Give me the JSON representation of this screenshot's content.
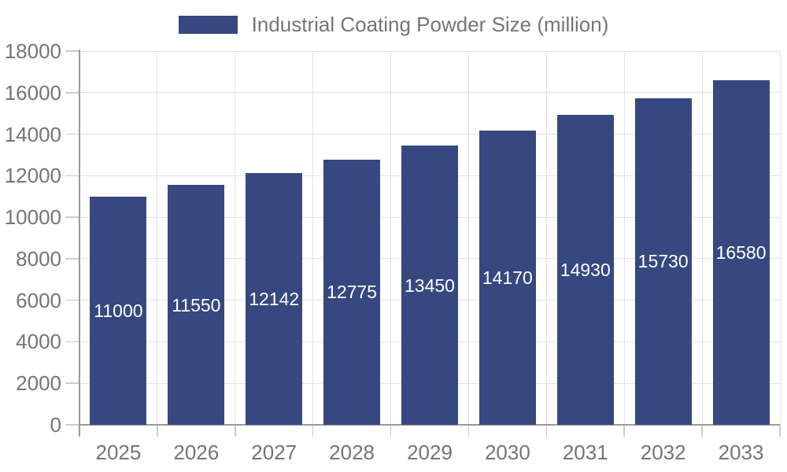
{
  "legend": {
    "label": "Industrial Coating Powder Size (million)"
  },
  "colors": {
    "bar": "#36487F",
    "grid": "#E2E2E6",
    "axis": "#999999",
    "tick": "#CCCCCC",
    "text": "#757575",
    "value_label": "#FFFFFF",
    "background": "#FFFFFF"
  },
  "chart_data": {
    "type": "bar",
    "title": "Industrial Coating Powder Size (million)",
    "series_name": "Industrial Coating Powder Size (million)",
    "categories": [
      "2025",
      "2026",
      "2027",
      "2028",
      "2029",
      "2030",
      "2031",
      "2032",
      "2033"
    ],
    "values": [
      11000,
      11550,
      12142,
      12775,
      13450,
      14170,
      14930,
      15730,
      16580
    ],
    "bar_labels": [
      11000,
      11550,
      12142,
      12775,
      13450,
      14170,
      14930,
      15730,
      16580
    ],
    "xlabel": "",
    "ylabel": "",
    "ylim": [
      0,
      18000
    ],
    "ytick_step": 2000,
    "yticks": [
      0,
      2000,
      4000,
      6000,
      8000,
      10000,
      12000,
      14000,
      16000,
      18000
    ],
    "grid": true,
    "legend_position": "top"
  }
}
